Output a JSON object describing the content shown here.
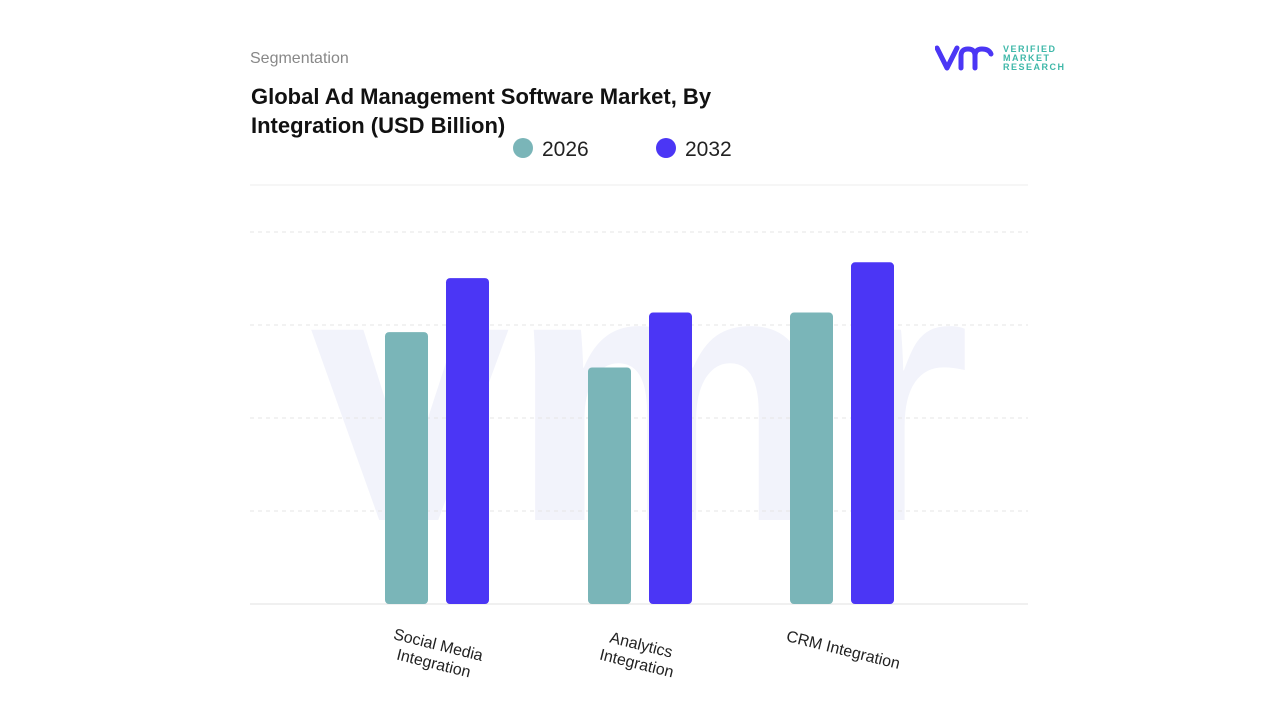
{
  "header": {
    "section_label": "Segmentation",
    "brand": "VERIFIED MARKET RESEARCH",
    "brand_lines": [
      "VERIFIED",
      "MARKET",
      "RESEARCH"
    ]
  },
  "chart_data": {
    "type": "bar",
    "title": "Global Ad Management Software Market, By Integration (USD Billion)",
    "categories": [
      "Social Media Integration",
      "Analytics Integration",
      "CRM Integration"
    ],
    "category_lines": [
      [
        "Social Media",
        "Integration"
      ],
      [
        "Analytics",
        "Integration"
      ],
      [
        "CRM Integration"
      ]
    ],
    "series": [
      {
        "name": "2026",
        "color": "#7ab5b8",
        "values": [
          2.92,
          2.54,
          3.13
        ]
      },
      {
        "name": "2032",
        "color": "#4b36f5",
        "values": [
          3.5,
          3.13,
          3.67
        ]
      }
    ],
    "ylim": [
      0,
      4.5
    ],
    "grid": true,
    "legend": "top-center",
    "y_tick_labels_shown": false
  }
}
